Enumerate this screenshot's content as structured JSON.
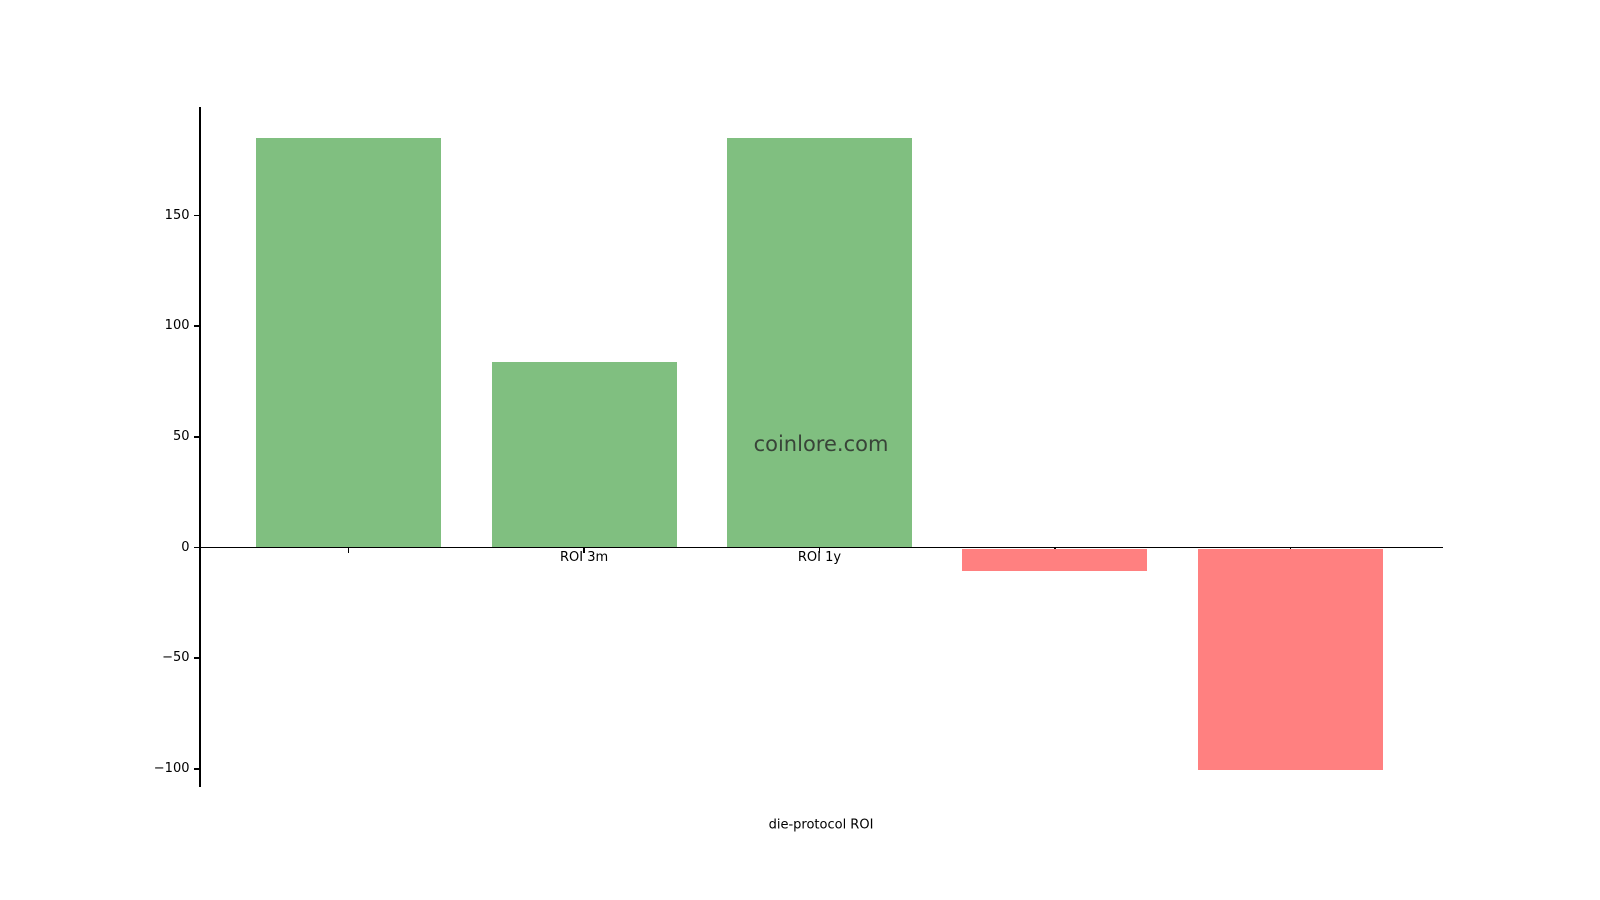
{
  "chart_data": {
    "type": "bar",
    "categories": [
      "",
      "ROI 3m",
      "ROI 1y",
      "",
      ""
    ],
    "values": [
      185,
      84,
      185,
      -10,
      -100
    ],
    "title": "",
    "xlabel": "die-protocol ROI",
    "ylabel": "",
    "yticks": [
      150,
      100,
      50,
      0,
      -50,
      -100
    ],
    "ylim": [
      -110,
      199
    ],
    "grid": false,
    "legend": "none",
    "positive_color": "#80bf80",
    "negative_color": "#ff8080",
    "axis_color": "#000000"
  },
  "watermark": {
    "text": "coinlore.com"
  }
}
